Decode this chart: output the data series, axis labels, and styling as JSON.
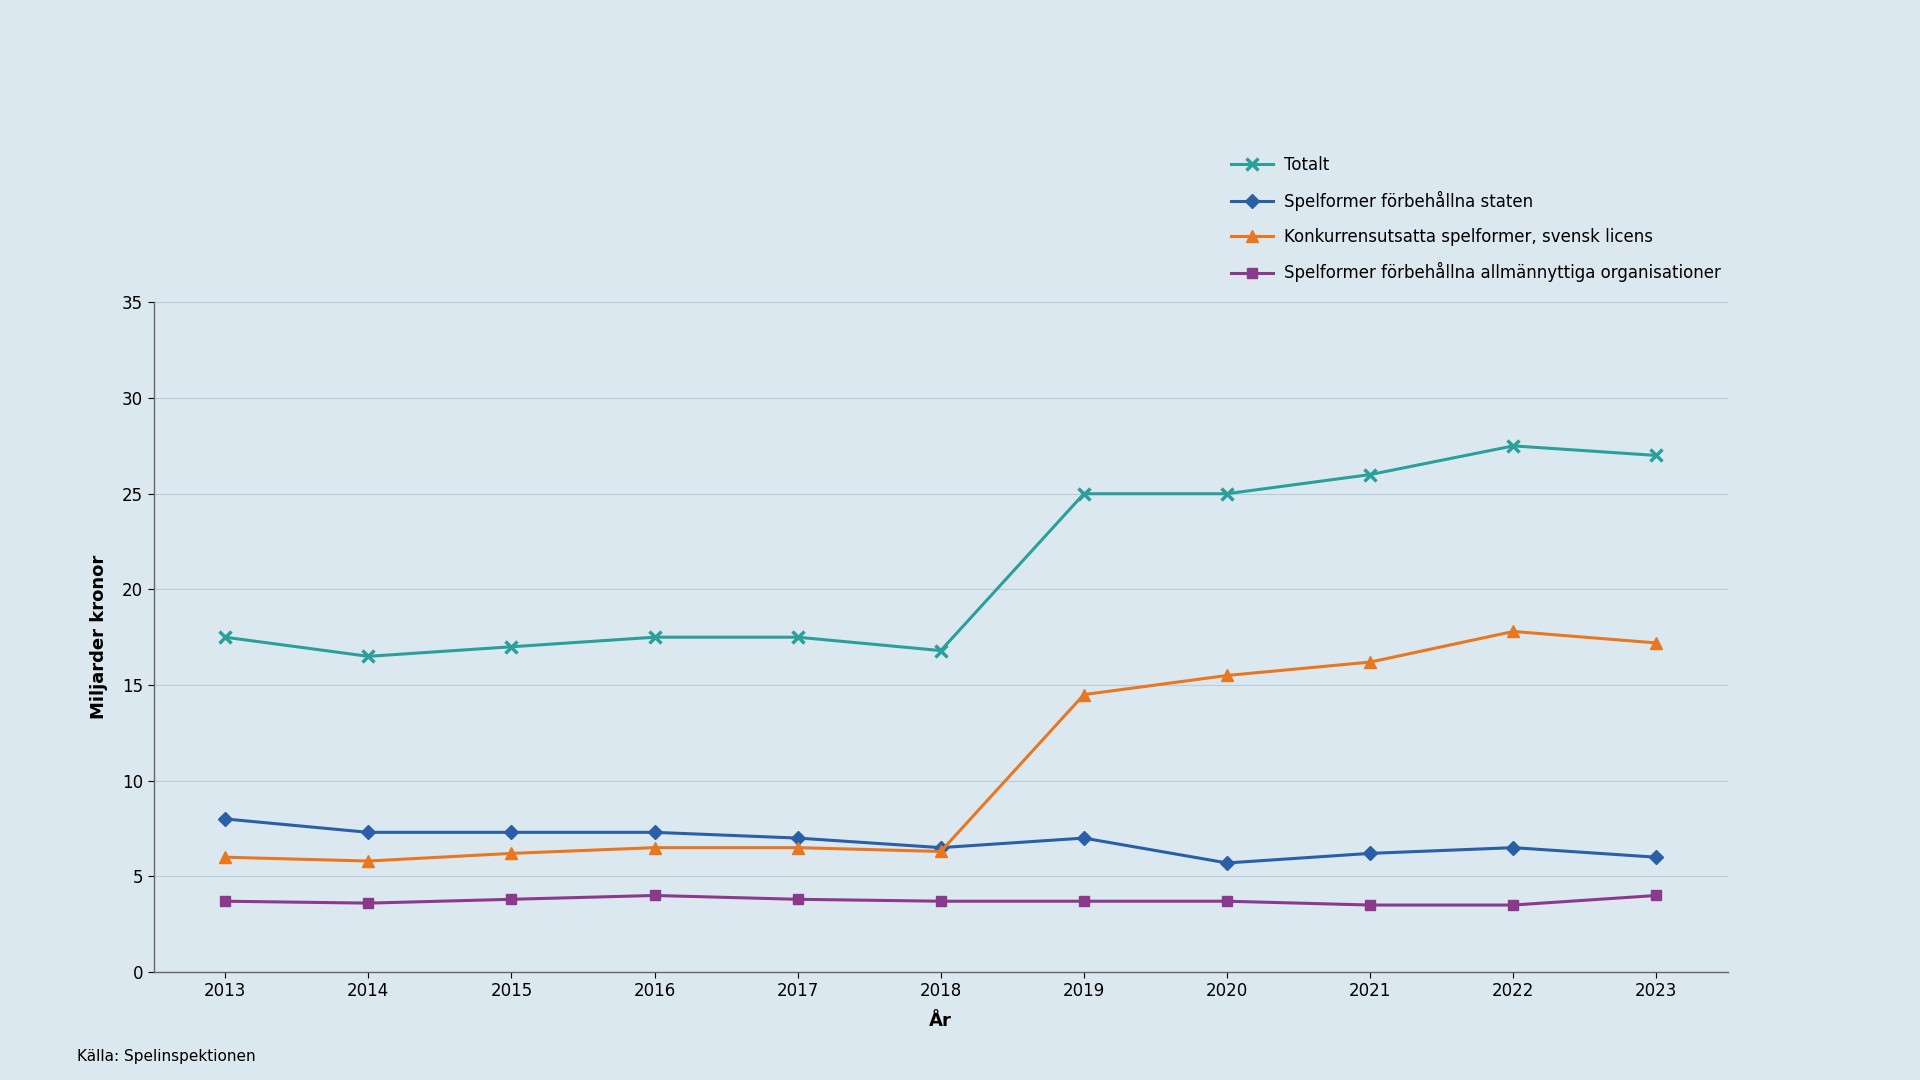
{
  "years": [
    2013,
    2014,
    2015,
    2016,
    2017,
    2018,
    2019,
    2020,
    2021,
    2022,
    2023
  ],
  "totalt": [
    17.5,
    16.5,
    17.0,
    17.5,
    17.5,
    16.8,
    25.0,
    25.0,
    26.0,
    27.5,
    27.0
  ],
  "staten": [
    8.0,
    7.3,
    7.3,
    7.3,
    7.0,
    6.5,
    7.0,
    5.7,
    6.2,
    6.5,
    6.0
  ],
  "konkurrens": [
    6.0,
    5.8,
    6.2,
    6.5,
    6.5,
    6.3,
    14.5,
    15.5,
    16.2,
    17.8,
    17.2
  ],
  "allmannyttiga": [
    3.7,
    3.6,
    3.8,
    4.0,
    3.8,
    3.7,
    3.7,
    3.7,
    3.5,
    3.5,
    4.0
  ],
  "colors": {
    "totalt": "#2ba09b",
    "staten": "#2a5fa5",
    "konkurrens": "#e87722",
    "allmannyttiga": "#8b3a8b"
  },
  "legend_labels": {
    "totalt": "Totalt",
    "staten": "Spelformer förbehållna staten",
    "konkurrens": "Konkurrensutsatta spelformer, svensk licens",
    "allmannyttiga": "Spelformer förbehållna allmännyttiga organisationer"
  },
  "ylabel": "Miljarder kronor",
  "xlabel": "År",
  "source": "Källa: Spelinspektionen",
  "ylim": [
    0,
    35
  ],
  "yticks": [
    0,
    5,
    10,
    15,
    20,
    25,
    30,
    35
  ],
  "background_color": "#dce8f0",
  "plot_background": "#dce8f0",
  "grid_color": "#b8cdd8"
}
